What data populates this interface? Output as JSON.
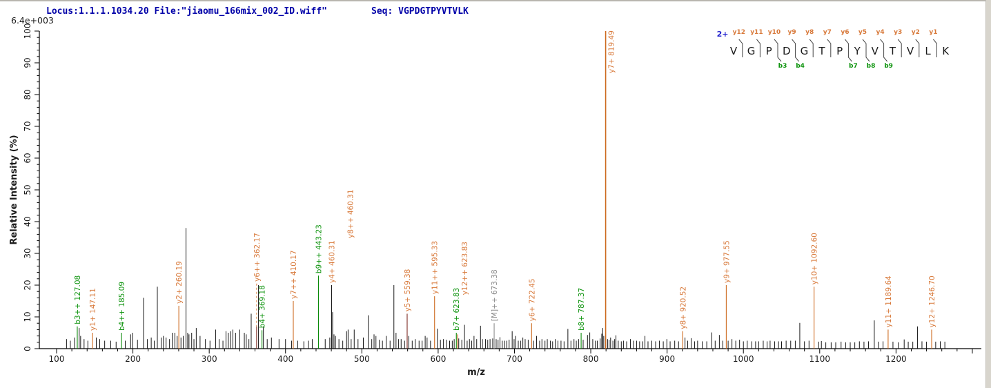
{
  "header": {
    "locus_file": "Locus:1.1.1.1034.20 File:\"jiaomu_166mix_002_ID.wiff\"",
    "seq_label": "Seq: VGPDGTPYVTVLK",
    "max_intensity": "6.4e+003"
  },
  "colors": {
    "header_text": "#0000A8",
    "axis": "#000000",
    "peak": "#141414",
    "y_ion": "#cd6a1e",
    "b_ion": "#0a8a0a",
    "precursor": "#8a8a8a",
    "overlap": "#7a241c",
    "y_label": "#d8793a",
    "b_label": "#0c930c",
    "charge": "#2323cf",
    "tick_label": "#1c1c1c"
  },
  "peptide": {
    "charge_label": "2+",
    "residues": [
      "V",
      "G",
      "P",
      "D",
      "G",
      "T",
      "P",
      "Y",
      "V",
      "T",
      "V",
      "L",
      "K"
    ],
    "boundaries": [
      {
        "y": "y12"
      },
      {
        "y": "y11"
      },
      {
        "y": "y10",
        "b": "b3"
      },
      {
        "y": "y9",
        "b": "b4"
      },
      {
        "y": "y8"
      },
      {
        "y": "y7"
      },
      {
        "y": "y6",
        "b": "b7"
      },
      {
        "y": "y5",
        "b": "b8"
      },
      {
        "y": "y4",
        "b": "b9"
      },
      {
        "y": "y3"
      },
      {
        "y": "y2"
      },
      {
        "y": "y1"
      }
    ]
  },
  "chart_data": {
    "type": "bar",
    "subtype": "ms2-mass-spectrum",
    "title": "MS/MS spectrum of peptide VGPDGTPYVTVLK (2+)",
    "xlabel": "m/z",
    "ylabel": "Relative  Intensity (%)",
    "xlim": [
      100,
      1310
    ],
    "ylim": [
      0,
      100
    ],
    "x_major_ticks": [
      100,
      200,
      300,
      400,
      500,
      600,
      700,
      800,
      900,
      1000,
      1100,
      1200
    ],
    "x_minor_step": 20,
    "y_major_ticks": [
      0,
      10,
      20,
      30,
      40,
      50,
      60,
      70,
      80,
      90,
      100
    ],
    "y_minor_step": 2,
    "annotated_peaks": [
      {
        "label": "b3++ 127.08",
        "ion": "b3++",
        "mz": 127.08,
        "intensity": 7,
        "type": "b"
      },
      {
        "label": "y1+ 147.11",
        "ion": "y1+",
        "mz": 147.11,
        "intensity": 5,
        "type": "y"
      },
      {
        "label": "b4++ 185.09",
        "ion": "b4++",
        "mz": 185.09,
        "intensity": 5,
        "type": "b"
      },
      {
        "label": "y2+ 260.19",
        "ion": "y2+",
        "mz": 260.19,
        "intensity": 13.5,
        "type": "y"
      },
      {
        "label": "y6++ 362.17",
        "ion": "y6++",
        "mz": 362.17,
        "intensity": 7,
        "type": "y",
        "line_color": "overlap",
        "label_raise": 62,
        "dashed_leader": true
      },
      {
        "label": "b4+ 369.18",
        "ion": "b4+",
        "mz": 369.18,
        "intensity": 5.8,
        "type": "b"
      },
      {
        "label": "y7++ 410.17",
        "ion": "y7++",
        "mz": 410.17,
        "intensity": 15,
        "type": "y"
      },
      {
        "label": "b9++ 443.23",
        "ion": "b9++",
        "mz": 443.23,
        "intensity": 23,
        "type": "b"
      },
      {
        "label": "y4+ 460.31",
        "ion": "y4+",
        "mz": 460.31,
        "intensity": 20,
        "type": "y",
        "line_color": "peak"
      },
      {
        "label": "y8++ 460.31",
        "ion": "y8++",
        "mz": 460.31,
        "intensity": 20,
        "type": "y",
        "no_line": true,
        "label_dx": 31,
        "label_raise": 65
      },
      {
        "label": "y5+ 559.38",
        "ion": "y5+",
        "mz": 559.38,
        "intensity": 11,
        "type": "y",
        "line_color": "overlap"
      },
      {
        "label": "y11++ 595.33",
        "ion": "y11++",
        "mz": 595.33,
        "intensity": 16.5,
        "type": "y"
      },
      {
        "label": "b7+ 623.83",
        "ion": "b7+",
        "mz": 623.83,
        "intensity": 5,
        "type": "b"
      },
      {
        "label": "y12++ 623.83",
        "ion": "y12++",
        "mz": 623.83,
        "line_mz": 625.6,
        "intensity": 4.5,
        "type": "y",
        "label_dx": 16,
        "label_raise": 54
      },
      {
        "label": "[M]++ 673.38",
        "ion": "[M]++",
        "mz": 673.38,
        "intensity": 8,
        "type": "M"
      },
      {
        "label": "y6+ 722.45",
        "ion": "y6+",
        "mz": 722.45,
        "intensity": 8,
        "type": "y"
      },
      {
        "label": "b8+ 787.37",
        "ion": "b8+",
        "mz": 787.37,
        "intensity": 5,
        "type": "b"
      },
      {
        "label": "y7+ 819.49",
        "ion": "y7+",
        "mz": 819.49,
        "intensity": 100,
        "type": "y",
        "label_dx": 12,
        "label_raise": -64
      },
      {
        "label": "y8+ 920.52",
        "ion": "y8+",
        "mz": 920.52,
        "intensity": 5.5,
        "type": "y"
      },
      {
        "label": "y9+ 977.55",
        "ion": "y9+",
        "mz": 977.55,
        "intensity": 20,
        "type": "y"
      },
      {
        "label": "y10+ 1092.60",
        "ion": "y10+",
        "mz": 1092.6,
        "intensity": 19.5,
        "type": "y"
      },
      {
        "label": "y11+ 1189.64",
        "ion": "y11+",
        "mz": 1189.64,
        "intensity": 6,
        "type": "y"
      },
      {
        "label": "y12+ 1246.70",
        "ion": "y12+",
        "mz": 1246.7,
        "intensity": 6,
        "type": "y"
      }
    ],
    "noise_peaks": [
      [
        113,
        3
      ],
      [
        118,
        2.5
      ],
      [
        123.5,
        3.5
      ],
      [
        129.6,
        6.5
      ],
      [
        131.5,
        4
      ],
      [
        136,
        3
      ],
      [
        141,
        2.5
      ],
      [
        152,
        3.5
      ],
      [
        156.5,
        3
      ],
      [
        163,
        2.5
      ],
      [
        171,
        2.5
      ],
      [
        178,
        2.2
      ],
      [
        190,
        2.5
      ],
      [
        197,
        4.5
      ],
      [
        199.5,
        5
      ],
      [
        206,
        2.8
      ],
      [
        214,
        16
      ],
      [
        219,
        3
      ],
      [
        224,
        3.5
      ],
      [
        228,
        2.5
      ],
      [
        232,
        19.5
      ],
      [
        237,
        3.5
      ],
      [
        240,
        4
      ],
      [
        243.5,
        3.5
      ],
      [
        248,
        3
      ],
      [
        251.5,
        5
      ],
      [
        255,
        5
      ],
      [
        258,
        4
      ],
      [
        263,
        3.5
      ],
      [
        266,
        4
      ],
      [
        269.6,
        38
      ],
      [
        271.8,
        5
      ],
      [
        273.5,
        4.5
      ],
      [
        277,
        5
      ],
      [
        280,
        3
      ],
      [
        283,
        6.5
      ],
      [
        288,
        4
      ],
      [
        295,
        3
      ],
      [
        301,
        2.5
      ],
      [
        308.5,
        6
      ],
      [
        313,
        3
      ],
      [
        318,
        2.5
      ],
      [
        322,
        5.5
      ],
      [
        325,
        5
      ],
      [
        328,
        5.5
      ],
      [
        331,
        6
      ],
      [
        334.5,
        5
      ],
      [
        340,
        6
      ],
      [
        346,
        5
      ],
      [
        348.5,
        4.5
      ],
      [
        352,
        3
      ],
      [
        355,
        11
      ],
      [
        364.6,
        20
      ],
      [
        371,
        7
      ],
      [
        376,
        3
      ],
      [
        381.5,
        3.5
      ],
      [
        391.5,
        3
      ],
      [
        400,
        3
      ],
      [
        408,
        2.5
      ],
      [
        416,
        2.5
      ],
      [
        424,
        2.3
      ],
      [
        430,
        2.5
      ],
      [
        435,
        3
      ],
      [
        452,
        3
      ],
      [
        458,
        3.5
      ],
      [
        461.7,
        11.5
      ],
      [
        463.5,
        4.5
      ],
      [
        465.5,
        4
      ],
      [
        470,
        3
      ],
      [
        475,
        2.5
      ],
      [
        480,
        5.5
      ],
      [
        482,
        6
      ],
      [
        486,
        3
      ],
      [
        490,
        6
      ],
      [
        495,
        3
      ],
      [
        502,
        3.5
      ],
      [
        508.5,
        10.5
      ],
      [
        513,
        3
      ],
      [
        516,
        4.5
      ],
      [
        518.5,
        4
      ],
      [
        523,
        2.8
      ],
      [
        527,
        2.5
      ],
      [
        532,
        4
      ],
      [
        537,
        2.5
      ],
      [
        542,
        20
      ],
      [
        544.8,
        5
      ],
      [
        548,
        3
      ],
      [
        551.5,
        3
      ],
      [
        556,
        2.5
      ],
      [
        561.5,
        4
      ],
      [
        566,
        2.5
      ],
      [
        570,
        3
      ],
      [
        575,
        2.5
      ],
      [
        579,
        2.5
      ],
      [
        583,
        4
      ],
      [
        585.5,
        3.5
      ],
      [
        590,
        2.5
      ],
      [
        599,
        6.3
      ],
      [
        603,
        2.8
      ],
      [
        607,
        3
      ],
      [
        611,
        2.8
      ],
      [
        615,
        2.5
      ],
      [
        618.5,
        2.5
      ],
      [
        621,
        3
      ],
      [
        627,
        3.2
      ],
      [
        631,
        2.8
      ],
      [
        634.5,
        7.5
      ],
      [
        638,
        2.5
      ],
      [
        641,
        3
      ],
      [
        644,
        2.5
      ],
      [
        647,
        4
      ],
      [
        650.5,
        3
      ],
      [
        655.5,
        7.2
      ],
      [
        658,
        3
      ],
      [
        662,
        3
      ],
      [
        665,
        2.8
      ],
      [
        668,
        3
      ],
      [
        671.5,
        3.2
      ],
      [
        676,
        3
      ],
      [
        678.5,
        2.8
      ],
      [
        681,
        3.6
      ],
      [
        684,
        2.5
      ],
      [
        687,
        2.5
      ],
      [
        690,
        2.5
      ],
      [
        693,
        2.8
      ],
      [
        697,
        5.5
      ],
      [
        699.5,
        3
      ],
      [
        701.5,
        4
      ],
      [
        705,
        2.5
      ],
      [
        708,
        2.5
      ],
      [
        711,
        3.5
      ],
      [
        714,
        3
      ],
      [
        718,
        2.8
      ],
      [
        725,
        2.5
      ],
      [
        729,
        4
      ],
      [
        733,
        2.5
      ],
      [
        736,
        3
      ],
      [
        740,
        2.5
      ],
      [
        743,
        3
      ],
      [
        747,
        2.5
      ],
      [
        750,
        2.3
      ],
      [
        753.5,
        3
      ],
      [
        757,
        2.5
      ],
      [
        761,
        2.5
      ],
      [
        765,
        2.3
      ],
      [
        770,
        6.2
      ],
      [
        774,
        2.5
      ],
      [
        778,
        3
      ],
      [
        781,
        2.5
      ],
      [
        784,
        3
      ],
      [
        790,
        2.8
      ],
      [
        795.7,
        4.3
      ],
      [
        798.7,
        5.1
      ],
      [
        802.6,
        3
      ],
      [
        806,
        2.5
      ],
      [
        808.5,
        2.5
      ],
      [
        812.3,
        3.2
      ],
      [
        814.4,
        4.7
      ],
      [
        815.6,
        6.5
      ],
      [
        817,
        4
      ],
      [
        822,
        3
      ],
      [
        824,
        2.8
      ],
      [
        826,
        3.5
      ],
      [
        829,
        2.5
      ],
      [
        831.3,
        3
      ],
      [
        833,
        4.2
      ],
      [
        836,
        2.5
      ],
      [
        840,
        2.3
      ],
      [
        843,
        2.5
      ],
      [
        847,
        2.3
      ],
      [
        852,
        3
      ],
      [
        856,
        2.5
      ],
      [
        860,
        2.5
      ],
      [
        864,
        2.3
      ],
      [
        868,
        2.3
      ],
      [
        871,
        4
      ],
      [
        875,
        2.3
      ],
      [
        880,
        2.5
      ],
      [
        885,
        2.3
      ],
      [
        890,
        2.5
      ],
      [
        895,
        2.3
      ],
      [
        899.7,
        3
      ],
      [
        904,
        2.3
      ],
      [
        910,
        2.5
      ],
      [
        915,
        2.3
      ],
      [
        923.5,
        3.5
      ],
      [
        927,
        2.5
      ],
      [
        931.6,
        3.3
      ],
      [
        936,
        2.3
      ],
      [
        940,
        2.5
      ],
      [
        946,
        2.3
      ],
      [
        952,
        2.3
      ],
      [
        958.6,
        5.1
      ],
      [
        963,
        2.5
      ],
      [
        968.5,
        4.3
      ],
      [
        973,
        2.5
      ],
      [
        980,
        2.5
      ],
      [
        985,
        3
      ],
      [
        990,
        2.5
      ],
      [
        995,
        2.8
      ],
      [
        1000,
        2.3
      ],
      [
        1005,
        2.5
      ],
      [
        1011,
        2.3
      ],
      [
        1016,
        2.3
      ],
      [
        1020,
        2.3
      ],
      [
        1026,
        2.5
      ],
      [
        1031,
        2.3
      ],
      [
        1035,
        2.5
      ],
      [
        1041,
        2.3
      ],
      [
        1046,
        2.3
      ],
      [
        1050,
        2.3
      ],
      [
        1056,
        2.5
      ],
      [
        1062,
        2.5
      ],
      [
        1068,
        2.5
      ],
      [
        1073.9,
        8.1
      ],
      [
        1080,
        2.3
      ],
      [
        1086,
        2.5
      ],
      [
        1098.6,
        2.2
      ],
      [
        1102.2,
        2.4
      ],
      [
        1108,
        2
      ],
      [
        1115,
        2
      ],
      [
        1121,
        2
      ],
      [
        1128,
        2.2
      ],
      [
        1134,
        2
      ],
      [
        1140,
        2
      ],
      [
        1146,
        2
      ],
      [
        1152,
        2.3
      ],
      [
        1158,
        2.2
      ],
      [
        1164,
        2.3
      ],
      [
        1171.5,
        8.9
      ],
      [
        1177,
        2.2
      ],
      [
        1183,
        2.3
      ],
      [
        1196,
        2.2
      ],
      [
        1203,
        2
      ],
      [
        1210.7,
        2.9
      ],
      [
        1216,
        2.2
      ],
      [
        1222,
        2.2
      ],
      [
        1228.1,
        7
      ],
      [
        1234,
        2.3
      ],
      [
        1240,
        2.2
      ],
      [
        1252,
        2.2
      ],
      [
        1258,
        2.3
      ],
      [
        1264,
        2.2
      ]
    ]
  }
}
